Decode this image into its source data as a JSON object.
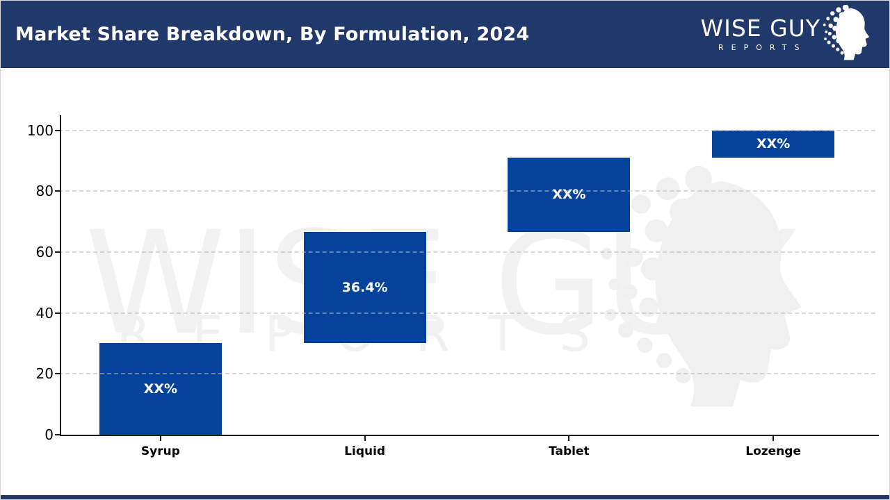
{
  "header": {
    "title": "Market Share Breakdown, By Formulation, 2024",
    "logo": {
      "name": "WISE GUY",
      "sub": "REPORTS"
    }
  },
  "watermark": {
    "name": "WISE GUY",
    "sub": "REPORTS"
  },
  "colors": {
    "header_bg": "#21386b",
    "bar_blue": "#05429b",
    "gridline": "#d6d6d6",
    "watermark": "#f2f2f2",
    "footer_bg": "#21386b"
  },
  "chart_data": {
    "type": "bar",
    "variant": "floating-waterfall",
    "title": "Market Share Breakdown, By Formulation, 2024",
    "categories": [
      "Syrup",
      "Liquid",
      "Tablet",
      "Lozenge"
    ],
    "bars": [
      {
        "category": "Syrup",
        "start": 0,
        "end": 30.2,
        "label": "XX%"
      },
      {
        "category": "Liquid",
        "start": 30.2,
        "end": 66.6,
        "label": "36.4%"
      },
      {
        "category": "Tablet",
        "start": 66.6,
        "end": 91.0,
        "label": "XX%"
      },
      {
        "category": "Lozenge",
        "start": 91.0,
        "end": 100,
        "label": "XX%"
      }
    ],
    "yticks": [
      0,
      20,
      40,
      60,
      80,
      100
    ],
    "ylim": [
      0,
      104
    ],
    "xlabel": "",
    "ylabel": "",
    "grid": "dashed-horizontal",
    "legend": "none",
    "bar_label_color": "#ffffff"
  }
}
